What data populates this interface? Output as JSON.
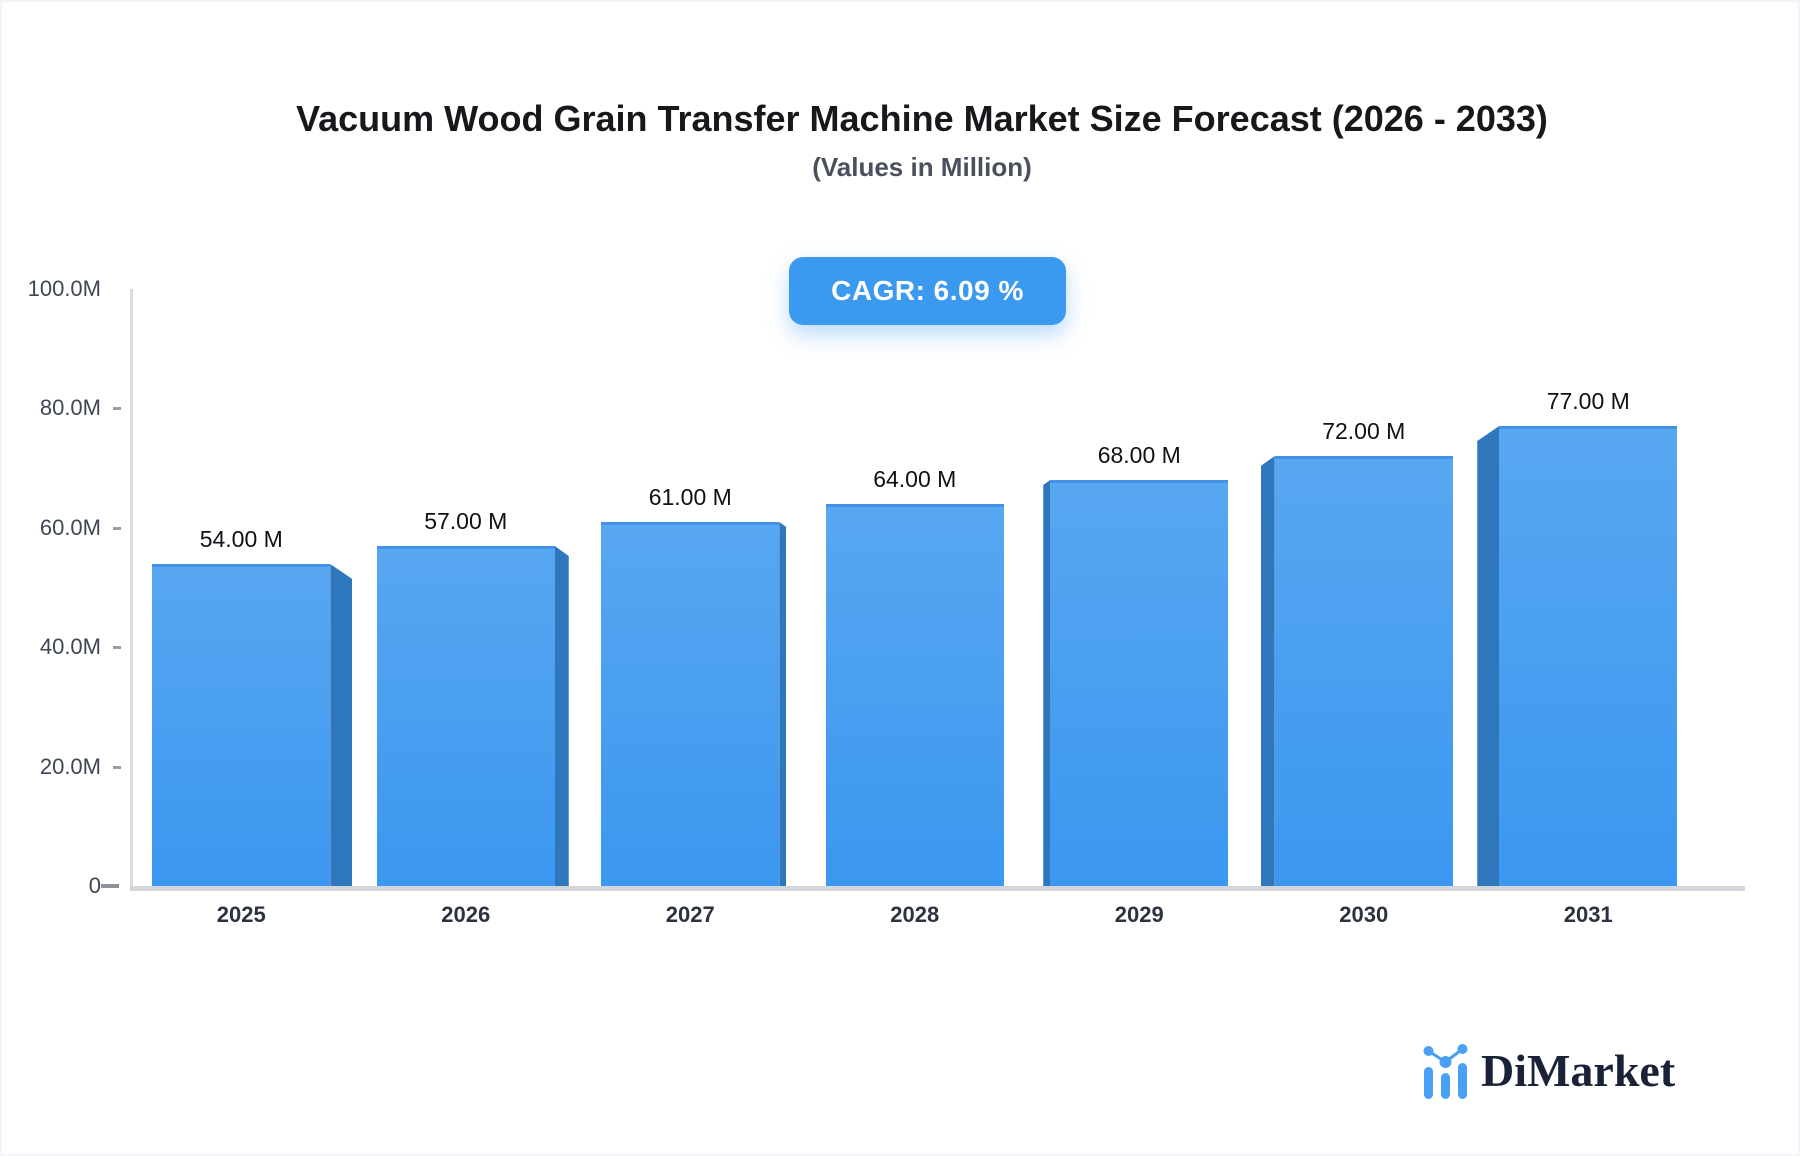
{
  "title": "Vacuum Wood Grain Transfer Machine Market Size Forecast (2026 - 2033)",
  "subtitle": "(Values in Million)",
  "badge": {
    "label": "CAGR: 6.09 %",
    "background": "#3b99f0",
    "text_color": "#ffffff"
  },
  "chart_data": {
    "type": "bar",
    "title": "Vacuum Wood Grain Transfer Machine Market Size Forecast (2026 - 2033)",
    "subtitle": "(Values in Million)",
    "unit": "Million",
    "categories": [
      "2025",
      "2026",
      "2027",
      "2028",
      "2029",
      "2030",
      "2031"
    ],
    "values": [
      54,
      57,
      61,
      64,
      68,
      72,
      77
    ],
    "value_labels": [
      "54.00 M",
      "57.00 M",
      "61.00 M",
      "64.00 M",
      "68.00 M",
      "72.00 M",
      "77.00 M"
    ],
    "ylim": [
      0,
      100
    ],
    "y_ticks": [
      {
        "value": 100,
        "label": "100.0M"
      },
      {
        "value": 80,
        "label": "80.0M"
      },
      {
        "value": 60,
        "label": "60.0M"
      },
      {
        "value": 40,
        "label": "40.0M"
      },
      {
        "value": 20,
        "label": "20.0M"
      },
      {
        "value": 0,
        "label": "0"
      }
    ],
    "grid": false,
    "legend": false,
    "bar_style": {
      "face_top": "#58a7f1",
      "face_bottom": "#3b97f0",
      "top_edge": "#4392e6",
      "side": "#2e77bd"
    }
  },
  "logo": {
    "text": "DiMarket",
    "icon": "bar-line-chart-icon",
    "icon_color": "#4aa0f5",
    "text_color": "#1a2238"
  }
}
